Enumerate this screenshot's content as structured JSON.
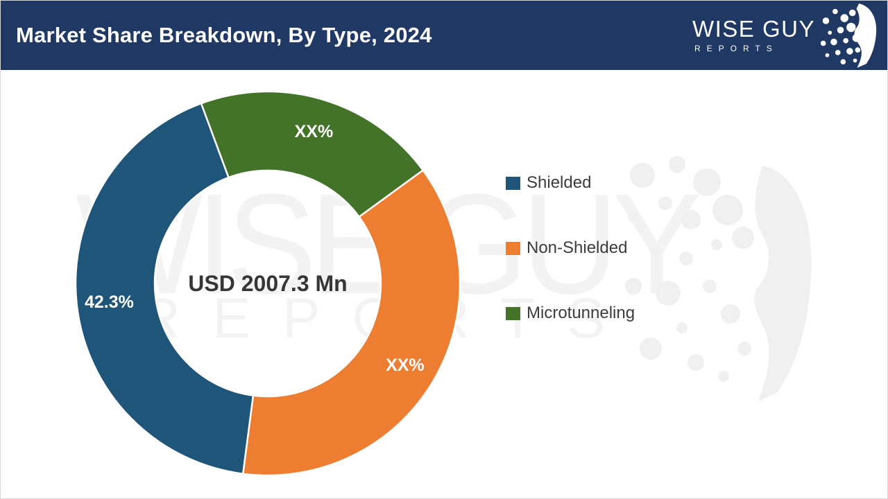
{
  "header": {
    "title": "Market Share Breakdown, By Type, 2024",
    "bg_color": "#203864",
    "logo": {
      "line1": "WISE GUY",
      "line2": "REPORTS"
    }
  },
  "chart_data": {
    "type": "pie",
    "subtype": "donut",
    "title": "Market Share Breakdown, By Type, 2024",
    "center_label": "USD 2007.3 Mn",
    "start_angle_deg": -20.3,
    "slices": [
      {
        "name": "Microtunneling",
        "pct": 20.6,
        "label": "XX%",
        "color": "#437329"
      },
      {
        "name": "Non-Shielded",
        "pct": 37.1,
        "label": "XX%",
        "color": "#ed7d31"
      },
      {
        "name": "Shielded",
        "pct": 42.3,
        "label": "42.3%",
        "color": "#1f5579"
      }
    ],
    "legend_position": "right",
    "legend": [
      {
        "label": "Shielded",
        "color": "#1f5579"
      },
      {
        "label": "Non-Shielded",
        "color": "#ed7d31"
      },
      {
        "label": "Microtunneling",
        "color": "#437329"
      }
    ]
  },
  "watermark": {
    "line1": "WISE GUY",
    "line2": "REPORTS"
  }
}
